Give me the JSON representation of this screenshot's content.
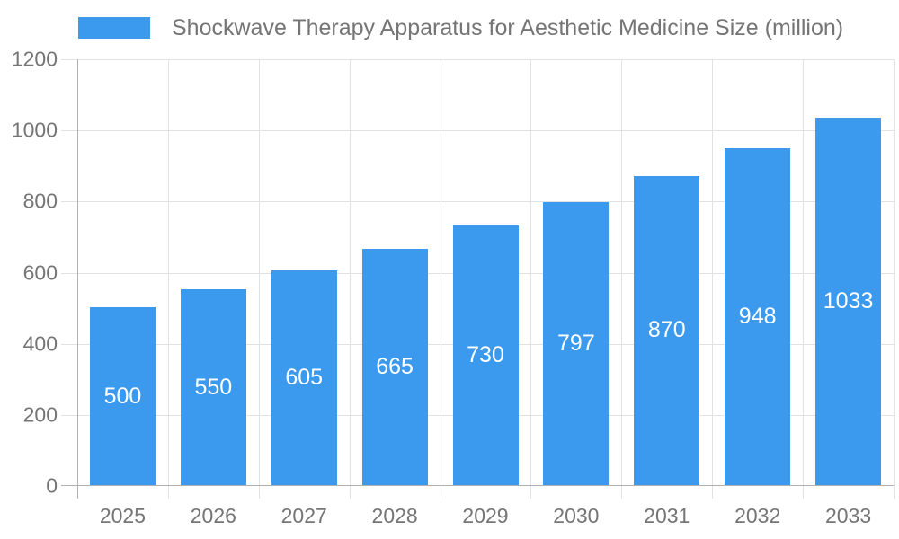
{
  "colors": {
    "bar": "#3b99ee",
    "grid": "#e2e2e2",
    "axis": "#b0b0b0",
    "text": "#757575",
    "value_label": "#ffffff",
    "background": "#ffffff"
  },
  "legend": {
    "label": "Shockwave Therapy Apparatus for Aesthetic Medicine Size (million)"
  },
  "chart_data": {
    "type": "bar",
    "title": "Shockwave Therapy Apparatus for Aesthetic Medicine Size (million)",
    "categories": [
      "2025",
      "2026",
      "2027",
      "2028",
      "2029",
      "2030",
      "2031",
      "2032",
      "2033"
    ],
    "values": [
      500,
      550,
      605,
      665,
      730,
      797,
      870,
      948,
      1033
    ],
    "series_name": "Shockwave Therapy Apparatus for Aesthetic Medicine Size (million)",
    "xlabel": "",
    "ylabel": "",
    "ylim": [
      0,
      1200
    ],
    "yticks": [
      0,
      200,
      400,
      600,
      800,
      1000,
      1200
    ],
    "grid": true,
    "legend_position": "top",
    "value_labels": "inside-center"
  }
}
